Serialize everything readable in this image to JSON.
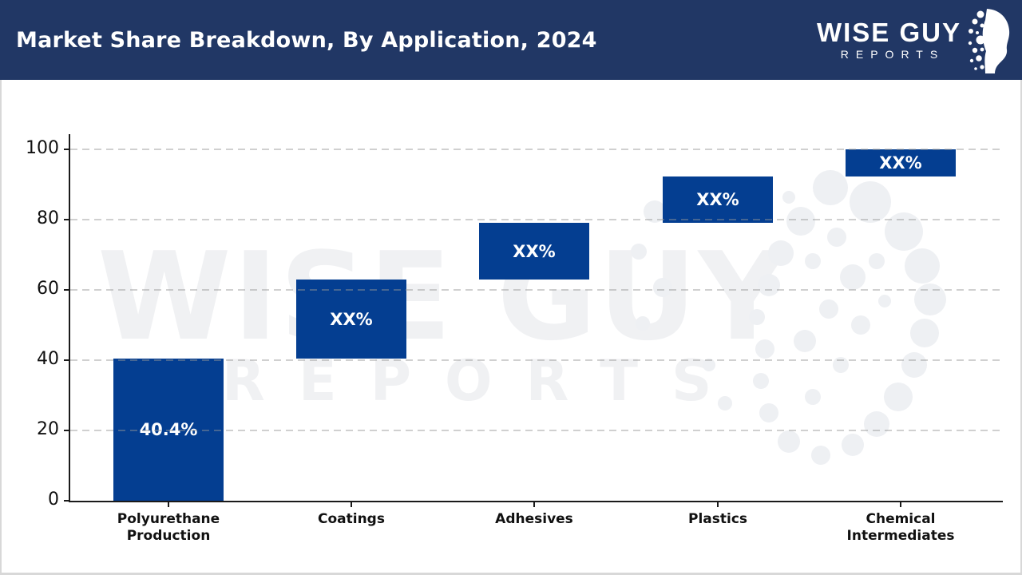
{
  "header": {
    "title": "Market Share Breakdown, By Application, 2024",
    "logo": {
      "brand": "WISE GUY",
      "sub": "REPORTS"
    }
  },
  "watermark": {
    "brand": "WISE GUY",
    "sub": "REPORTS"
  },
  "chart_data": {
    "type": "bar",
    "subtype": "waterfall",
    "title": "Market Share Breakdown, By Application, 2024",
    "categories": [
      "Polyurethane Production",
      "Coatings",
      "Adhesives",
      "Plastics",
      "Chemical Intermediates"
    ],
    "bars": [
      {
        "category": "Polyurethane Production",
        "start": 0,
        "end": 40.4,
        "label": "40.4%"
      },
      {
        "category": "Coatings",
        "start": 40.4,
        "end": 63,
        "label": "XX%"
      },
      {
        "category": "Adhesives",
        "start": 63,
        "end": 79,
        "label": "XX%"
      },
      {
        "category": "Plastics",
        "start": 79,
        "end": 92.3,
        "label": "XX%"
      },
      {
        "category": "Chemical Intermediates",
        "start": 92.3,
        "end": 100,
        "label": "XX%"
      }
    ],
    "xlabel": "",
    "ylabel": "",
    "yticks": [
      0,
      20,
      40,
      60,
      80,
      100
    ],
    "ylim": [
      0,
      104
    ],
    "grid": "horizontal-dashed-over-bars",
    "legend": "none",
    "bar_color": "#043e91",
    "bar_label_color": "#ffffff"
  },
  "colors": {
    "header_bg": "#213765",
    "title_text": "#ffffff",
    "bar": "#043e91",
    "axis": "#1a1a1a",
    "grid": "#bfbfbf",
    "watermark": "#f0f1f3",
    "page_border": "#d8d8d8"
  }
}
